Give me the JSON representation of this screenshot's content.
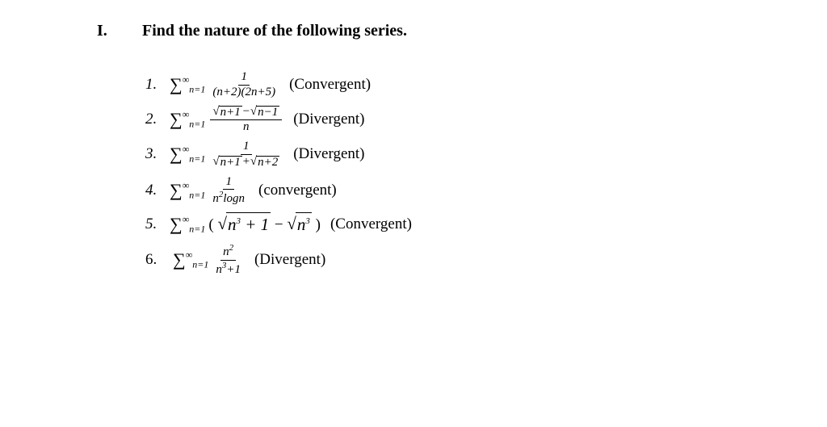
{
  "header": {
    "number": "I.",
    "title": "Find the nature of the following series."
  },
  "items": {
    "i1": {
      "num": "1.",
      "annot": "(Convergent)",
      "frac_num": "1"
    },
    "i2": {
      "num": "2.",
      "annot": "(Divergent)",
      "den": "n"
    },
    "i3": {
      "num": "3.",
      "annot": "(Divergent)",
      "frac_num": "1"
    },
    "i4": {
      "num": "4.",
      "annot": "(convergent)",
      "frac_num": "1"
    },
    "i5": {
      "num": "5.",
      "annot": "(Convergent)"
    },
    "i6": {
      "num": "6.",
      "annot": "(Divergent)"
    }
  },
  "math": {
    "sigma": "∑",
    "inf": "∞",
    "sub": "n=1",
    "n": "n",
    "plus": "+",
    "minus": "−",
    "lp": "(",
    "rp": ")",
    "np1": "n+1",
    "nm1": "n−1",
    "np2": "n+2",
    "den1a": "(n+2)(2n+5)",
    "n2": "n",
    "sup2": "2",
    "n3": "n",
    "sup3": "3",
    "n3p1_inner": "+ 1",
    "logn": "logn",
    "den6": "+1",
    "space": " "
  }
}
